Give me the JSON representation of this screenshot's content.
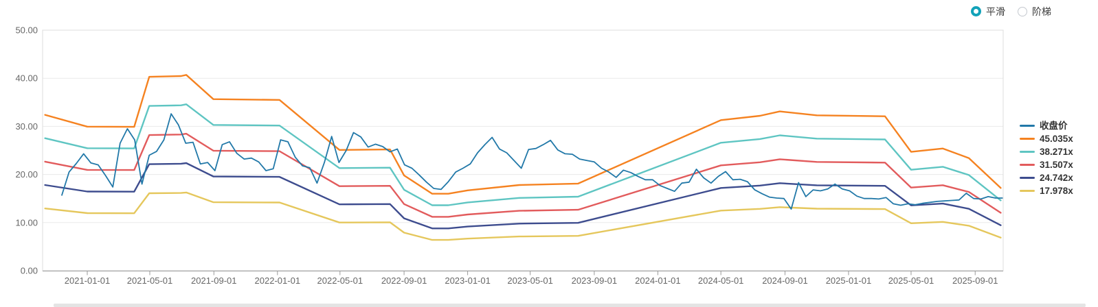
{
  "controls": {
    "options": [
      {
        "label": "平滑",
        "selected": true
      },
      {
        "label": "阶梯",
        "selected": false
      }
    ],
    "selected_color": "#12A2B9"
  },
  "chart_data": {
    "type": "line",
    "title": "",
    "xlabel": "",
    "ylabel": "",
    "grid": true,
    "y_axis": {
      "min": 0,
      "max": 50,
      "tick_interval": 10,
      "tick_labels": [
        "0.00",
        "10.00",
        "20.00",
        "30.00",
        "40.00",
        "50.00"
      ]
    },
    "x_axis": {
      "tick_labels": [
        "2021-01-01",
        "2021-05-01",
        "2021-09-01",
        "2022-01-01",
        "2022-05-01",
        "2022-09-01",
        "2023-01-01",
        "2023-05-01",
        "2023-09-01",
        "2024-01-01",
        "2024-05-01",
        "2024-09-01",
        "2025-01-01",
        "2025-05-01",
        "2025-09-01"
      ]
    },
    "legend": {
      "position": "right",
      "items": [
        {
          "label": "收盘价",
          "color": "#2178A8"
        },
        {
          "label": "45.035x",
          "color": "#F58220"
        },
        {
          "label": "38.271x",
          "color": "#5EC5C2"
        },
        {
          "label": "31.507x",
          "color": "#E25B5C"
        },
        {
          "label": "24.742x",
          "color": "#3D4C8E"
        },
        {
          "label": "17.978x",
          "color": "#E5C75C"
        }
      ]
    },
    "close_series": {
      "name": "收盘价",
      "color": "#2178A8",
      "start_date": "2020-11-13",
      "interval_days": 14,
      "values": [
        15.6,
        20.5,
        22.3,
        24.3,
        22.4,
        22.0,
        19.8,
        17.4,
        26.5,
        29.5,
        27.2,
        18.0,
        24.0,
        24.8,
        27.2,
        32.6,
        30.3,
        26.5,
        26.7,
        22.2,
        22.5,
        20.8,
        26.2,
        26.8,
        24.4,
        23.2,
        23.4,
        22.6,
        20.8,
        21.2,
        27.2,
        26.8,
        23.6,
        21.8,
        21.4,
        18.2,
        22.5,
        27.9,
        22.5,
        25.0,
        28.7,
        27.8,
        25.7,
        26.3,
        25.8,
        24.7,
        25.3,
        22.0,
        21.3,
        19.9,
        18.4,
        17.1,
        16.9,
        18.5,
        20.5,
        21.3,
        22.2,
        24.5,
        26.2,
        27.7,
        25.3,
        24.5,
        22.9,
        21.3,
        25.2,
        25.4,
        26.2,
        27.1,
        25.1,
        24.3,
        24.2,
        23.2,
        22.9,
        22.6,
        21.3,
        20.5,
        19.4,
        20.9,
        20.4,
        19.6,
        18.9,
        18.9,
        17.7,
        17.1,
        16.5,
        18.2,
        18.4,
        21.1,
        19.3,
        18.2,
        19.6,
        20.6,
        18.9,
        19.0,
        18.5,
        16.8,
        16.0,
        15.3,
        15.1,
        15.0,
        12.8,
        18.3,
        15.4,
        16.8,
        16.6,
        17.0,
        18.0,
        17.0,
        16.6,
        15.5,
        15.0,
        15.0,
        14.9,
        15.2,
        13.9,
        13.6,
        13.9,
        13.7,
        14.0,
        14.2,
        14.4,
        14.5,
        14.6,
        14.7,
        16.1,
        15.0,
        14.9,
        15.4,
        15.1,
        15.1
      ]
    },
    "pe_bands": {
      "dates": [
        "2020-10-12",
        "2021-01-01",
        "2021-04-01",
        "2021-04-30",
        "2021-06-30",
        "2021-07-10",
        "2021-08-31",
        "2022-01-05",
        "2022-04-30",
        "2022-08-05",
        "2022-09-01",
        "2022-10-25",
        "2022-11-25",
        "2023-01-01",
        "2023-04-10",
        "2023-08-01",
        "2024-05-01",
        "2024-07-15",
        "2024-08-22",
        "2024-11-01",
        "2025-03-12",
        "2025-05-01",
        "2025-07-01",
        "2025-08-20",
        "2025-10-20"
      ],
      "series": [
        {
          "name": "45.035x",
          "multiple": 45.035,
          "color": "#F58220",
          "values": [
            32.4,
            29.95,
            29.9,
            40.3,
            40.45,
            40.7,
            35.65,
            35.5,
            25.1,
            25.2,
            19.8,
            16.0,
            16.0,
            16.7,
            17.8,
            18.1,
            31.3,
            32.2,
            33.1,
            32.3,
            32.1,
            24.7,
            25.4,
            23.4,
            17.2
          ]
        },
        {
          "name": "38.271x",
          "multiple": 38.271,
          "color": "#5EC5C2",
          "values": [
            27.53,
            25.45,
            25.41,
            34.25,
            34.38,
            34.59,
            30.3,
            30.17,
            21.33,
            21.41,
            16.83,
            13.6,
            13.6,
            14.19,
            15.13,
            15.38,
            26.6,
            27.36,
            28.13,
            27.45,
            27.28,
            20.99,
            21.59,
            19.89,
            14.62
          ]
        },
        {
          "name": "31.507x",
          "multiple": 31.507,
          "color": "#E25B5C",
          "values": [
            22.67,
            20.95,
            20.92,
            28.19,
            28.3,
            28.47,
            24.94,
            24.84,
            17.56,
            17.63,
            13.85,
            11.19,
            11.19,
            11.68,
            12.45,
            12.66,
            21.9,
            22.53,
            23.16,
            22.6,
            22.46,
            17.28,
            17.77,
            16.37,
            12.03
          ]
        },
        {
          "name": "24.742x",
          "multiple": 24.742,
          "color": "#3D4C8E",
          "values": [
            17.8,
            16.45,
            16.43,
            22.14,
            22.23,
            22.36,
            19.59,
            19.5,
            13.79,
            13.84,
            10.88,
            8.79,
            8.79,
            9.18,
            9.78,
            9.94,
            17.2,
            17.69,
            18.19,
            17.75,
            17.64,
            13.57,
            13.95,
            12.86,
            9.45
          ]
        },
        {
          "name": "17.978x",
          "multiple": 17.978,
          "color": "#E5C75C",
          "values": [
            12.93,
            11.96,
            11.94,
            16.09,
            16.15,
            16.25,
            14.23,
            14.17,
            10.02,
            10.06,
            7.9,
            6.39,
            6.39,
            6.67,
            7.11,
            7.23,
            12.49,
            12.85,
            13.21,
            12.89,
            12.81,
            9.86,
            10.14,
            9.34,
            6.87
          ]
        }
      ]
    }
  }
}
